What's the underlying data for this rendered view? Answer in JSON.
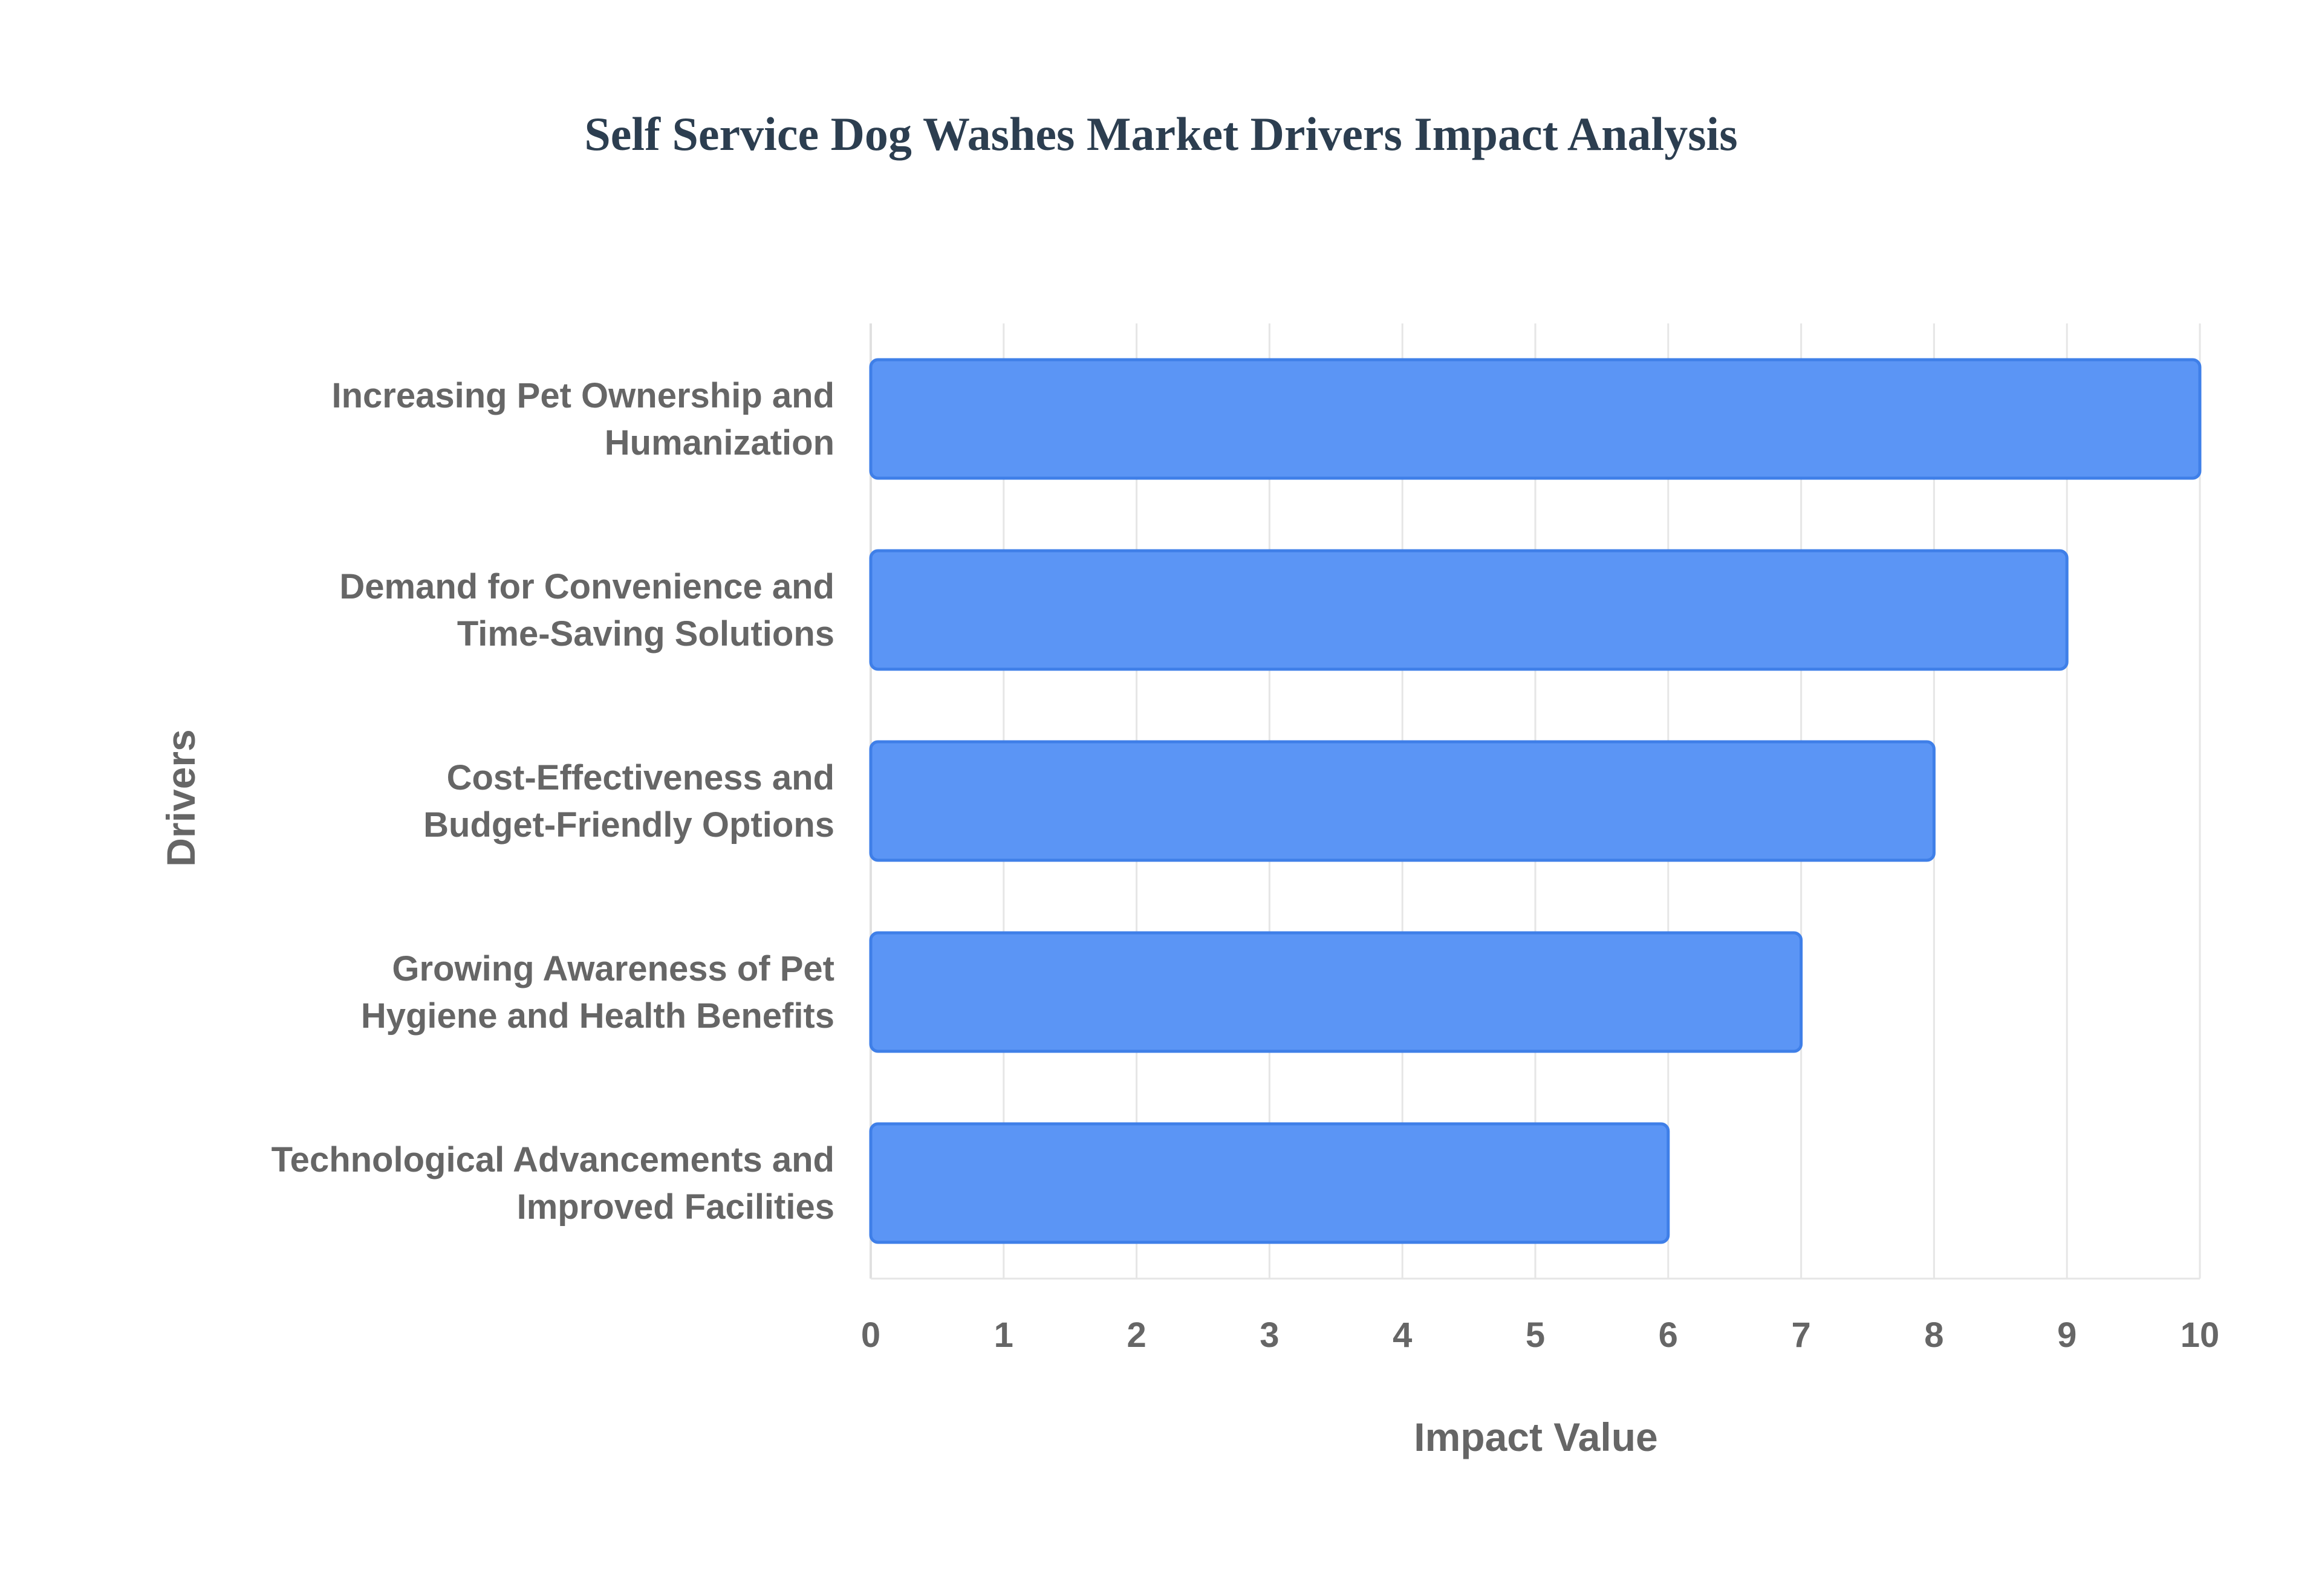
{
  "chart_data": {
    "type": "bar",
    "orientation": "horizontal",
    "title": "Self Service Dog Washes Market Drivers Impact Analysis",
    "xlabel": "Impact Value",
    "ylabel": "Drivers",
    "categories": [
      [
        "Increasing Pet Ownership and",
        "Humanization"
      ],
      [
        "Demand for Convenience and",
        "Time-Saving Solutions"
      ],
      [
        "Cost-Effectiveness and",
        "Budget-Friendly Options"
      ],
      [
        "Growing Awareness of Pet",
        "Hygiene and Health Benefits"
      ],
      [
        "Technological Advancements and",
        "Improved Facilities"
      ]
    ],
    "values": [
      10,
      9,
      8,
      7,
      6
    ],
    "xlim": [
      0,
      10
    ],
    "xticks": [
      "0",
      "1",
      "2",
      "3",
      "4",
      "5",
      "6",
      "7",
      "8",
      "9",
      "10"
    ],
    "grid": true,
    "legend": "none",
    "colors": {
      "bar_fill": "#5b95f5",
      "bar_stroke": "#3f7fe8"
    }
  }
}
